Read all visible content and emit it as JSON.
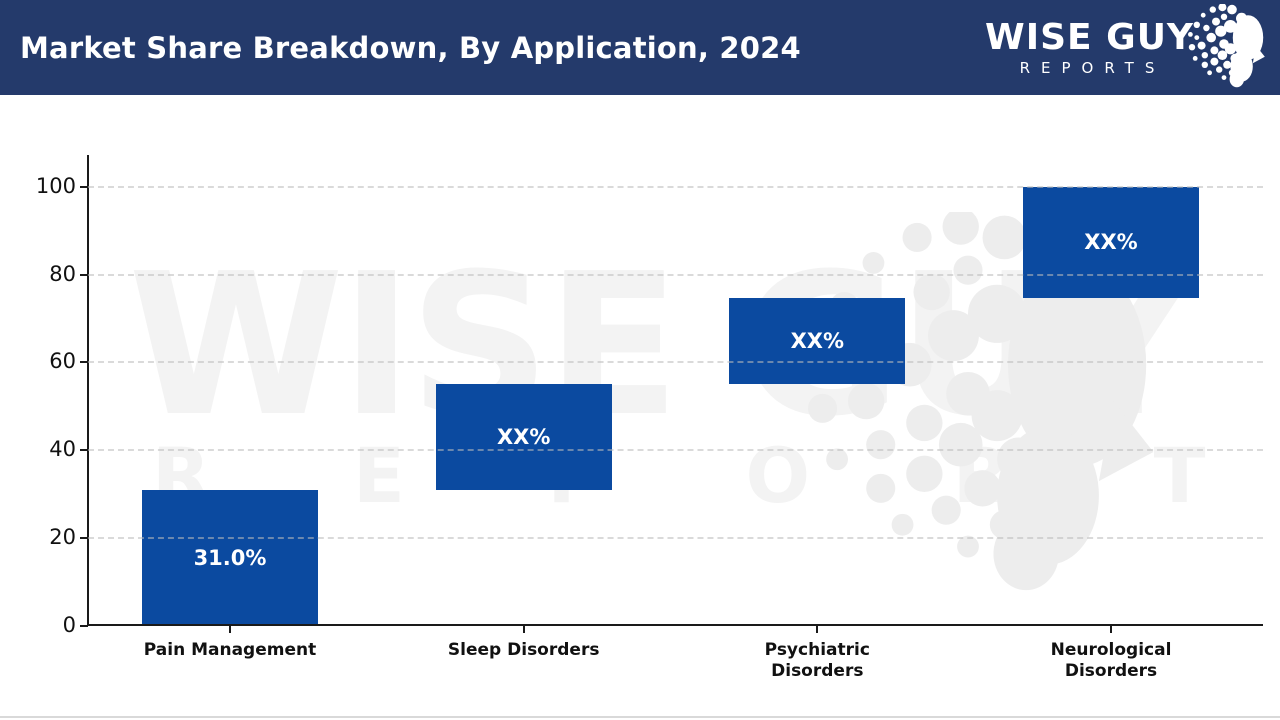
{
  "header": {
    "title": "Market Share Breakdown, By Application, 2024",
    "logo": {
      "line1": "WISE GUY",
      "line2": "REPORTS"
    }
  },
  "watermark": {
    "line1": "WISE GUY",
    "line2": "R E P O R T S"
  },
  "chart_data": {
    "type": "bar",
    "subtype": "waterfall",
    "title": "Market Share Breakdown, By Application, 2024",
    "categories": [
      "Pain Management",
      "Sleep Disorders",
      "Psychiatric\nDisorders",
      "Neurological\nDisorders"
    ],
    "segments": [
      {
        "category": "Pain Management",
        "start": 0,
        "end": 31,
        "label": "31.0%"
      },
      {
        "category": "Sleep Disorders",
        "start": 31,
        "end": 55,
        "label": "XX%"
      },
      {
        "category": "Psychiatric Disorders",
        "start": 55,
        "end": 74.7,
        "label": "XX%"
      },
      {
        "category": "Neurological Disorders",
        "start": 74.7,
        "end": 100,
        "label": "XX%"
      }
    ],
    "yticks": [
      "0",
      "20",
      "40",
      "60",
      "80",
      "100"
    ],
    "ytick_values": [
      0,
      20,
      40,
      60,
      80,
      100
    ],
    "ylim": [
      0,
      107
    ],
    "xlabel": "",
    "ylabel": "",
    "grid": "horizontal-dashed",
    "legend": "none",
    "bar_color": "#0B4AA0",
    "bar_label_color": "#ffffff",
    "header_color": "#243A6B",
    "axis_color": "#1a1a1a"
  }
}
